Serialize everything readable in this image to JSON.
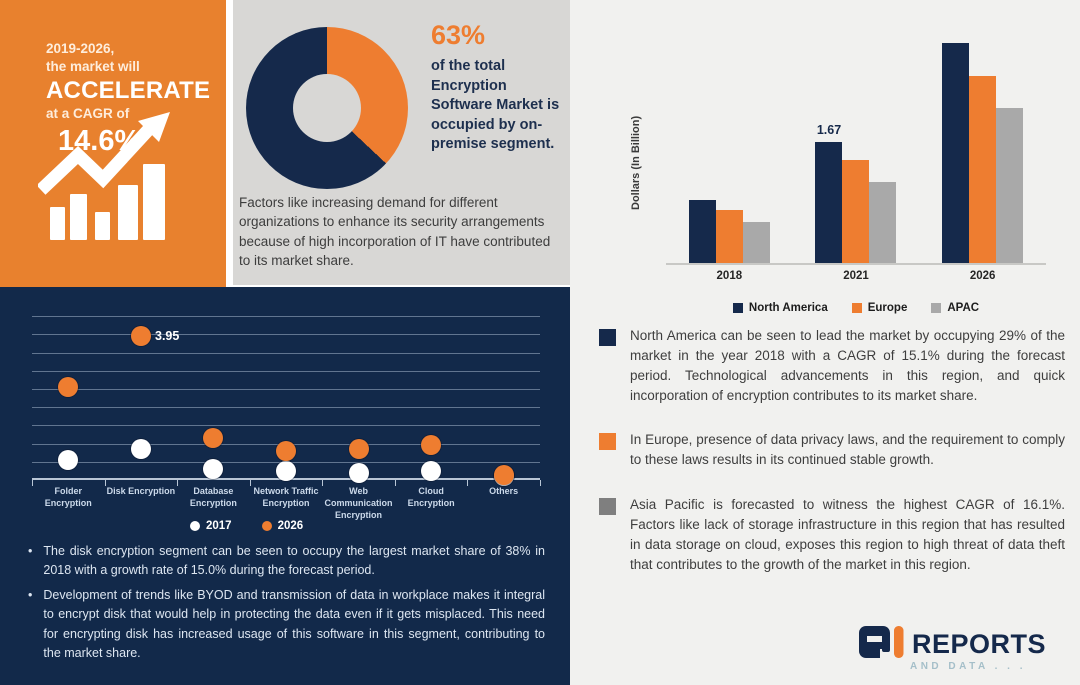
{
  "colors": {
    "accent_orange": "#ee7d30",
    "card_orange": "#e8812e",
    "navy": "#15294b",
    "panel_navy": "#12294a",
    "panel_gray": "#d8d7d5",
    "bg_light": "#f1f1ef",
    "bar_gray": "#a9a9a9",
    "note_gray": "#7f7f7f"
  },
  "accelerate_card": {
    "period": "2019-2026,",
    "line2": "the market will",
    "headline": "ACCELERATE",
    "line4": "at a CAGR of",
    "cagr": "14.6%"
  },
  "donut_section": {
    "stat": "63%",
    "stat_caption": "of the total Encryption Software Market is occupied by on-premise segment.",
    "body": "Factors like increasing demand for different organizations to enhance its security arrangements because of high incorporation of IT have contributed to its market share."
  },
  "chart_data": [
    {
      "type": "pie",
      "title": "",
      "segments": [
        {
          "label": "",
          "value": 37,
          "color": "#ee7d30"
        },
        {
          "label": "on-premise segment",
          "value": 63,
          "color": "#15294b"
        }
      ],
      "highlight": "63%"
    },
    {
      "type": "bar",
      "ylabel": "Dollars (In Billion)",
      "categories": [
        "2018",
        "2021",
        "2026"
      ],
      "series": [
        {
          "name": "North America",
          "color": "#15294b",
          "values": [
            0.87,
            1.67,
            3.03
          ]
        },
        {
          "name": "Europe",
          "color": "#ee7d30",
          "values": [
            0.73,
            1.42,
            2.58
          ]
        },
        {
          "name": "APAC",
          "color": "#a9a9a9",
          "values": [
            0.57,
            1.12,
            2.14
          ]
        }
      ],
      "ylim": [
        0,
        3.2
      ],
      "grid": false,
      "legend_position": "bottom",
      "annotations": [
        {
          "series": "North America",
          "category": "2021",
          "text": "1.67"
        }
      ]
    },
    {
      "type": "scatter",
      "categories": [
        "Folder Encryption",
        "Disk Encryption",
        "Database Encryption",
        "Network Traffic Encryption",
        "Web Communication Encryption",
        "Cloud Encryption",
        "Others"
      ],
      "series": [
        {
          "name": "2017",
          "color": "#ffffff",
          "values": [
            0.55,
            0.85,
            0.3,
            0.25,
            0.2,
            0.25,
            0.1
          ]
        },
        {
          "name": "2026",
          "color": "#ee7d30",
          "values": [
            2.55,
            3.95,
            1.15,
            0.8,
            0.85,
            0.95,
            0.15
          ]
        }
      ],
      "ylim": [
        0,
        5.3
      ],
      "grid": true,
      "grid_step": 0.5,
      "grid_max": 4.5,
      "legend_position": "bottom",
      "annotations": [
        {
          "series": "2026",
          "category": "Disk Encryption",
          "text": "3.95"
        }
      ]
    }
  ],
  "disk_bullets": [
    "The disk encryption segment can be seen to occupy the largest market share of 38% in 2018 with a growth rate of 15.0% during the forecast period.",
    "Development of trends like BYOD and transmission of data in workplace makes it integral to encrypt disk that would help in protecting the data even if it gets misplaced. This need for encrypting disk has increased usage of this software in this segment, contributing to the market share."
  ],
  "region_notes": [
    {
      "region": "North America",
      "color": "#15294b",
      "text": "North America can be seen to lead the market by occupying 29% of the market in the year 2018 with a CAGR of 15.1% during the forecast period. Technological advancements in this region, and quick incorporation of encryption contributes to its market share."
    },
    {
      "region": "Europe",
      "color": "#ee7d30",
      "text": "In Europe, presence of data privacy laws, and the requirement to comply to these laws results in its continued stable growth."
    },
    {
      "region": "APAC",
      "color": "#7f7f7f",
      "text": "Asia Pacific is forecasted to witness the highest CAGR of 16.1%. Factors like lack of storage infrastructure in this region that has resulted in data storage on cloud, exposes this region to high threat of data theft that contributes to the growth of the market in this region."
    }
  ],
  "logo": {
    "name": "REPORTS",
    "tagline": "AND DATA . . ."
  }
}
